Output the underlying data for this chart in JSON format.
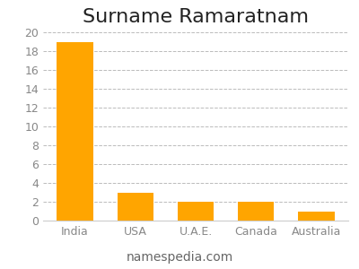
{
  "title": "Surname Ramaratnam",
  "categories": [
    "India",
    "USA",
    "U.A.E.",
    "Canada",
    "Australia"
  ],
  "values": [
    19,
    3,
    2,
    2,
    1
  ],
  "bar_color": "#FFA500",
  "ylim": [
    0,
    20
  ],
  "yticks": [
    0,
    2,
    4,
    6,
    8,
    10,
    12,
    14,
    16,
    18,
    20
  ],
  "grid_color": "#bbbbbb",
  "background_color": "#ffffff",
  "footer_text": "namespedia.com",
  "title_fontsize": 16,
  "tick_fontsize": 9,
  "footer_fontsize": 10,
  "ylabel_color": "#888888",
  "xlabel_color": "#888888"
}
